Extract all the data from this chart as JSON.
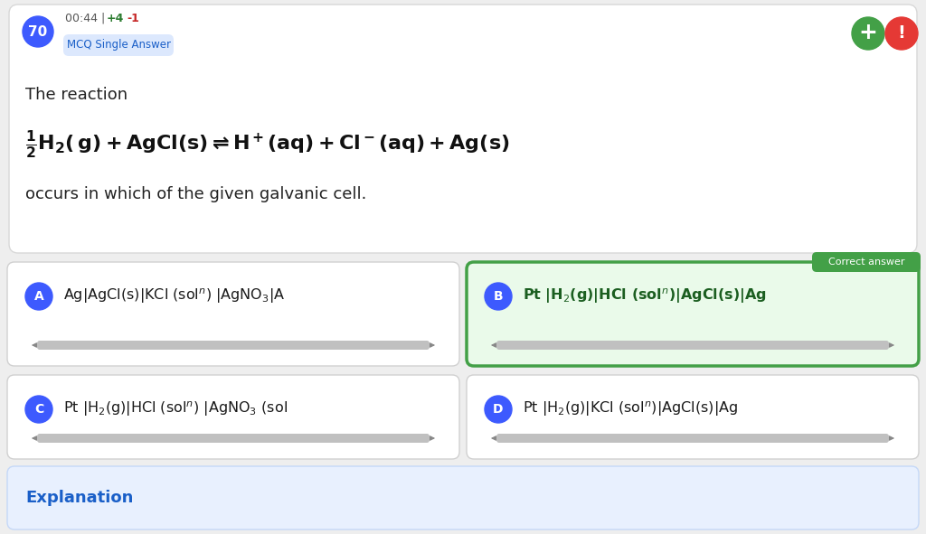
{
  "bg_color": "#eeeeee",
  "top_card_bg": "#ffffff",
  "question_number": "70",
  "question_number_bg": "#3d5afe",
  "timer_text": "00:44 |",
  "plus4": "+4",
  "minus1": "-1",
  "plus4_color": "#2e7d32",
  "minus1_color": "#c62828",
  "tag_text": "MCQ Single Answer",
  "tag_bg": "#dce8fd",
  "tag_color": "#1a5fc8",
  "green_circle_color": "#43a047",
  "red_circle_color": "#e53935",
  "option_circle_color": "#3d5afe",
  "option_A_label": "A",
  "option_B_label": "B",
  "option_C_label": "C",
  "option_D_label": "D",
  "option_A_text": "Ag|AgCl(s)|KCl (sol$^{n}$) |AgNO$_3$|A",
  "option_B_text": "Pt |H$_2$(g)|HCl (sol$^{n}$)|AgCl(s)|Ag",
  "option_C_text": "Pt |H$_2$(g)|HCl (sol$^{n}$) |AgNO$_3$ (sol",
  "option_D_text": "Pt |H$_2$(g)|KCl (sol$^{n}$)|AgCl(s)|Ag",
  "correct_answer_label": "Correct answer",
  "correct_answer_bg": "#eafaea",
  "correct_answer_border": "#43a047",
  "correct_answer_text_color": "#1b5e20",
  "card_bg": "#ffffff",
  "card_border": "#d0d0d0",
  "explanation_text": "Explanation",
  "explanation_color": "#1a5fc8",
  "explanation_bg": "#e8f0fe",
  "scrollbar_color": "#c0c0c0",
  "timer_color": "#555555"
}
